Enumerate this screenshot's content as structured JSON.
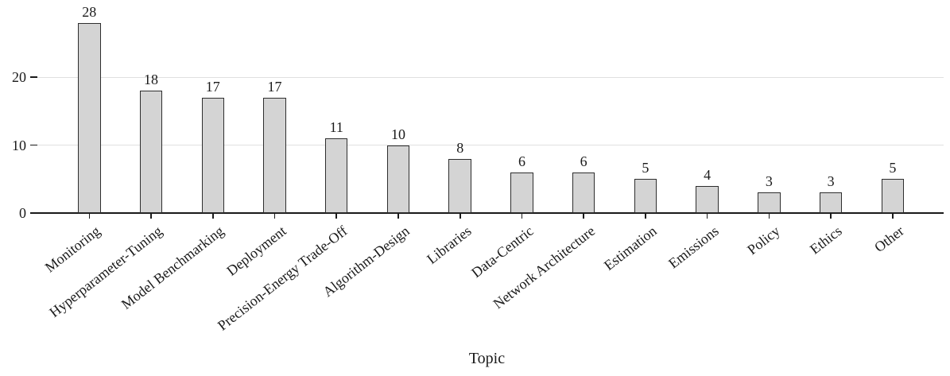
{
  "chart_data": {
    "type": "bar",
    "title": "",
    "xlabel": "Topic",
    "ylabel": "",
    "categories": [
      "Monitoring",
      "Hyperparameter-Tuning",
      "Model Benchmarking",
      "Deployment",
      "Precision-Energy Trade-Off",
      "Algorithm-Design",
      "Libraries",
      "Data-Centric",
      "Network Architecture",
      "Estimation",
      "Emissions",
      "Policy",
      "Ethics",
      "Other"
    ],
    "values": [
      28,
      18,
      17,
      17,
      11,
      10,
      8,
      6,
      6,
      5,
      4,
      3,
      3,
      5
    ],
    "yticks": [
      0,
      10,
      20
    ],
    "ylim": [
      0,
      28.8
    ],
    "grid": "horizontal-at-yticks",
    "legend": "none",
    "bar_fill_color": "#d4d4d4",
    "bar_edge_color": "#2e2e2e",
    "grid_color": "#e0e0e0",
    "axis_color": "#1a1a1a",
    "text_color": "#1a1a1a",
    "background_color": "#ffffff",
    "x_tick_label_rotation_deg": 38
  }
}
